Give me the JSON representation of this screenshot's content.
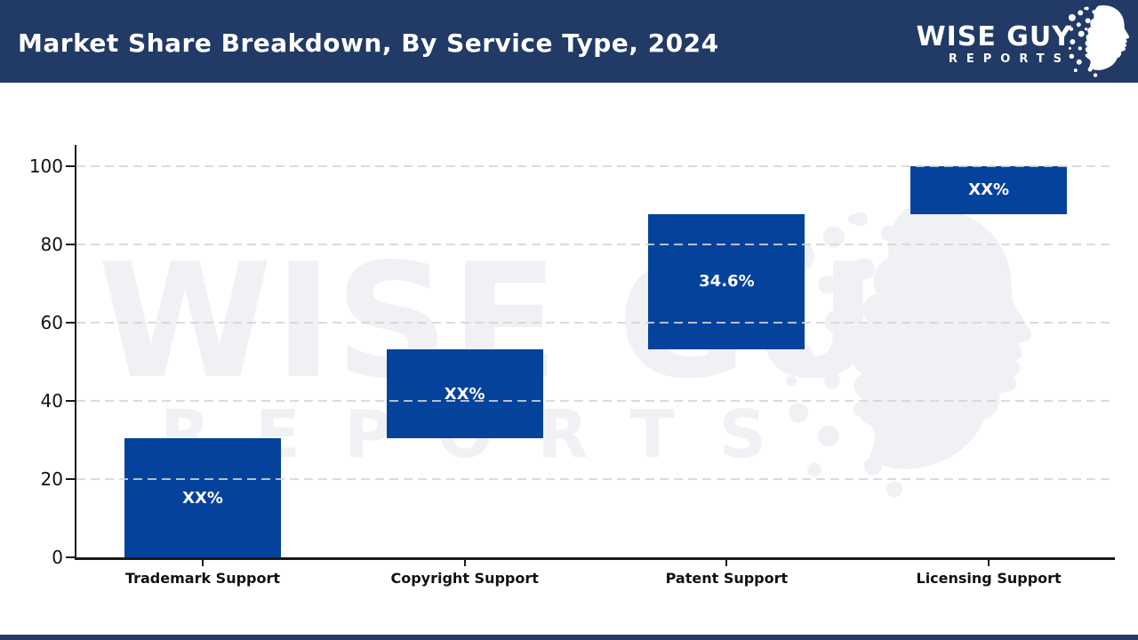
{
  "header": {
    "title": "Market Share Breakdown, By Service Type, 2024",
    "logo": {
      "name": "WISE GUY",
      "subtitle": "REPORTS"
    }
  },
  "watermark": {
    "line1": "WISE GU",
    "line2": "REPORTS"
  },
  "colors": {
    "header_bg": "#213a66",
    "footer_bg": "#213a66",
    "bar": "#05429c",
    "bar_label": "#ffffff",
    "axis": "#1a1a1a",
    "gridline": "#d5d5d5",
    "watermark": "#f0f1f4",
    "title_text": "#ffffff"
  },
  "chart_data": {
    "type": "bar",
    "subtype": "waterfall-floating-bars",
    "title": "Market Share Breakdown, By Service Type, 2024",
    "categories": [
      "Trademark Support",
      "Copyright Support",
      "Patent Support",
      "Licensing Support"
    ],
    "segments": [
      {
        "category": "Trademark Support",
        "start": 0,
        "end": 30.4,
        "value_est": 30.4,
        "label": "XX%"
      },
      {
        "category": "Copyright Support",
        "start": 30.4,
        "end": 53.2,
        "value_est": 22.8,
        "label": "XX%"
      },
      {
        "category": "Patent Support",
        "start": 53.2,
        "end": 87.8,
        "value_est": 34.6,
        "label": "34.6%"
      },
      {
        "category": "Licensing Support",
        "start": 87.8,
        "end": 100,
        "value_est": 12.2,
        "label": "XX%"
      }
    ],
    "ylabel": "",
    "xlabel": "",
    "ylim": [
      0,
      100
    ],
    "yticks": [
      0,
      20,
      40,
      60,
      80,
      100
    ],
    "grid": "horizontal dashed, drawn over bars",
    "legend": "none",
    "units": "percent"
  }
}
